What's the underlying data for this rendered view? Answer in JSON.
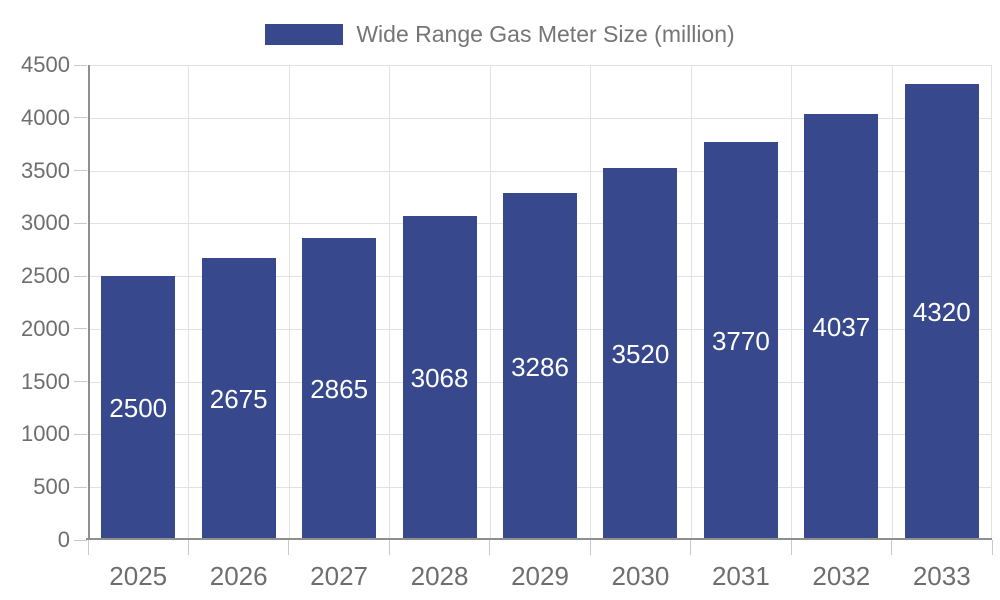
{
  "chart_data": {
    "type": "bar",
    "title": "Wide Range Gas Meter Size (million)",
    "categories": [
      "2025",
      "2026",
      "2027",
      "2028",
      "2029",
      "2030",
      "2031",
      "2032",
      "2033"
    ],
    "values": [
      2500,
      2675,
      2865,
      3068,
      3286,
      3520,
      3770,
      4037,
      4320
    ],
    "xlabel": "",
    "ylabel": "",
    "ylim": [
      0,
      4500
    ],
    "ytick_step": 500,
    "ytick_labels": [
      "0",
      "500",
      "1000",
      "1500",
      "2000",
      "2500",
      "3000",
      "3500",
      "4000",
      "4500"
    ],
    "grid": true,
    "legend_position": "top",
    "colors": {
      "bar": "#37498C",
      "value_label": "#FFFFFF",
      "axis_text": "#6E6E6E",
      "legend_text": "#757575",
      "grid_line": "#E2E2E2",
      "axis_line": "#8F8F8F",
      "tick_mark": "#C9C9C9",
      "background": "#FFFFFF"
    }
  }
}
